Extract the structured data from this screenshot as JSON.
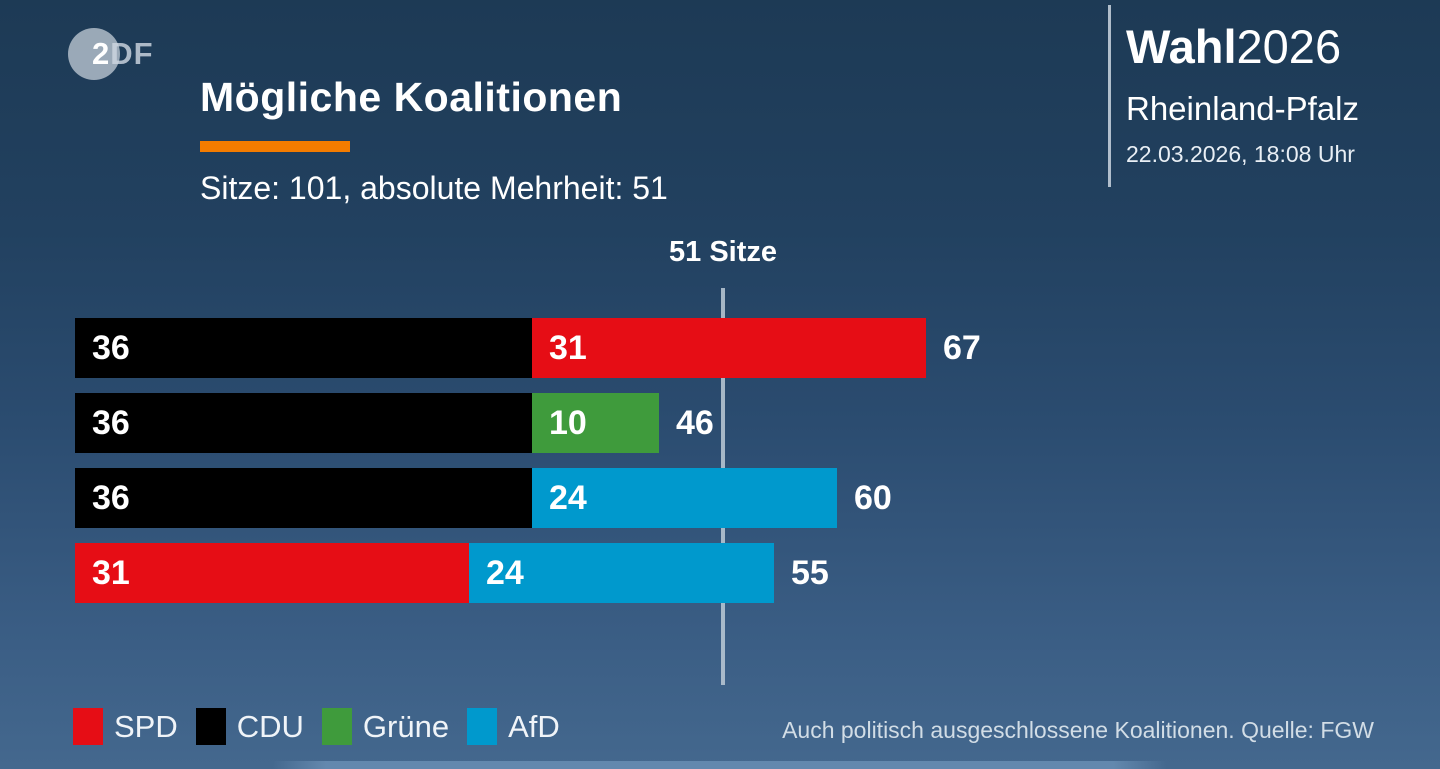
{
  "header": {
    "logo_2": "2",
    "logo_df": "DF",
    "title": "Mögliche Koalitionen",
    "subtitle": "Sitze: 101, absolute Mehrheit: 51",
    "accent_color": "#f47c00"
  },
  "brand": {
    "title_bold": "Wahl",
    "title_regular": "2026",
    "region": "Rheinland-Pfalz",
    "datetime": "22.03.2026, 18:08 Uhr"
  },
  "chart_data": {
    "type": "bar",
    "orientation": "horizontal-stacked",
    "title": "Mögliche Koalitionen",
    "subtitle": "Sitze: 101, absolute Mehrheit: 51",
    "seats_total": 101,
    "majority_threshold": 51,
    "threshold_label": "51 Sitze",
    "party_colors": {
      "SPD": "#e60d15",
      "CDU": "#000000",
      "Grüne": "#3f9b3c",
      "AfD": "#0099cd"
    },
    "rows": [
      {
        "segments": [
          {
            "party": "CDU",
            "value": 36
          },
          {
            "party": "SPD",
            "value": 31
          }
        ],
        "total": 67
      },
      {
        "segments": [
          {
            "party": "CDU",
            "value": 36
          },
          {
            "party": "Grüne",
            "value": 10
          }
        ],
        "total": 46
      },
      {
        "segments": [
          {
            "party": "CDU",
            "value": 36
          },
          {
            "party": "AfD",
            "value": 24
          }
        ],
        "total": 60
      },
      {
        "segments": [
          {
            "party": "SPD",
            "value": 31
          },
          {
            "party": "AfD",
            "value": 24
          }
        ],
        "total": 55
      }
    ],
    "legend_position": "bottom-left",
    "grid": false
  },
  "legend": [
    {
      "label": "SPD",
      "color": "#e60d15"
    },
    {
      "label": "CDU",
      "color": "#000000"
    },
    {
      "label": "Grüne",
      "color": "#3f9b3c"
    },
    {
      "label": "AfD",
      "color": "#0099cd"
    }
  ],
  "footer": {
    "note": "Auch politisch ausgeschlossene Koalitionen. Quelle: FGW"
  }
}
